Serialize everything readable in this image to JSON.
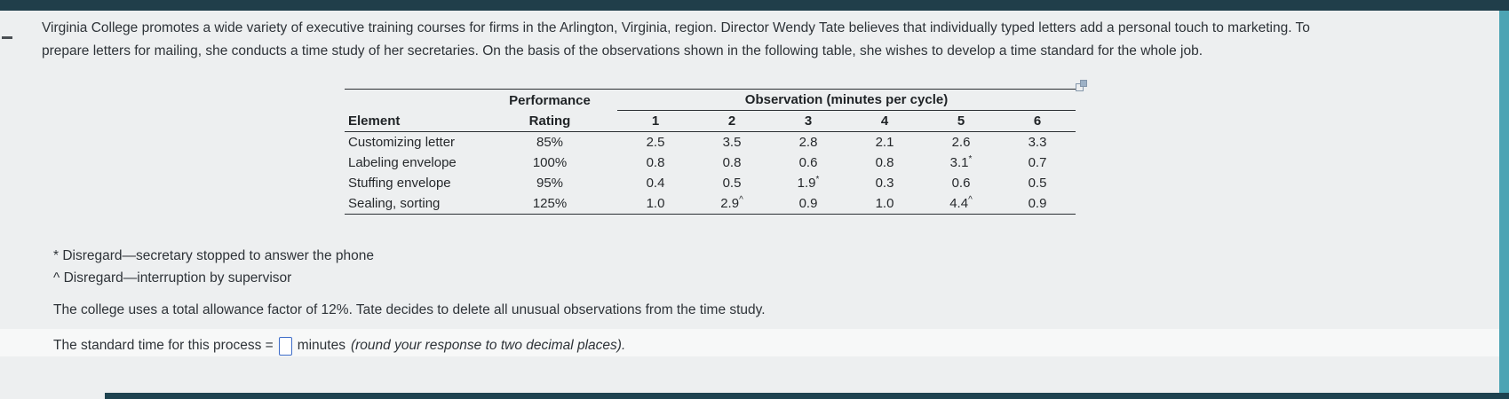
{
  "page": {
    "intro": "Virginia College promotes a wide variety of executive training courses for firms in the Arlington, Virginia, region. Director Wendy Tate believes that individually typed letters add a personal touch to marketing. To prepare letters for mailing, she conducts a time study of her secretaries. On the basis of the observations shown in the following table, she wishes to develop a time standard for the whole job.",
    "footnote_star": "* Disregard—secretary stopped to answer the phone",
    "footnote_caret": "^ Disregard—interruption by supervisor",
    "allowance": "The college uses a total allowance factor of 12%. Tate decides to delete all unusual observations from the time study.",
    "answer": {
      "prefix": "The standard time for this process =",
      "unit": "minutes",
      "note": "(round your response to two decimal places)."
    }
  },
  "table": {
    "perf_line1": "Performance",
    "perf_line2": "Rating",
    "element_header": "Element",
    "group_header": "Observation (minutes per cycle)",
    "obs_headers": [
      "1",
      "2",
      "3",
      "4",
      "5",
      "6"
    ],
    "rows": [
      {
        "element": "Customizing letter",
        "rating": "85%",
        "obs": [
          "2.5",
          "3.5",
          "2.8",
          "2.1",
          "2.6",
          "3.3"
        ],
        "marks": [
          "",
          "",
          "",
          "",
          "",
          ""
        ]
      },
      {
        "element": "Labeling envelope",
        "rating": "100%",
        "obs": [
          "0.8",
          "0.8",
          "0.6",
          "0.8",
          "3.1",
          "0.7"
        ],
        "marks": [
          "",
          "",
          "",
          "",
          "*",
          ""
        ]
      },
      {
        "element": "Stuffing envelope",
        "rating": "95%",
        "obs": [
          "0.4",
          "0.5",
          "1.9",
          "0.3",
          "0.6",
          "0.5"
        ],
        "marks": [
          "",
          "",
          "*",
          "",
          "",
          ""
        ]
      },
      {
        "element": "Sealing, sorting",
        "rating": "125%",
        "obs": [
          "1.0",
          "2.9",
          "0.9",
          "1.0",
          "4.4",
          "0.9"
        ],
        "marks": [
          "",
          "^",
          "",
          "",
          "^",
          ""
        ]
      }
    ]
  }
}
